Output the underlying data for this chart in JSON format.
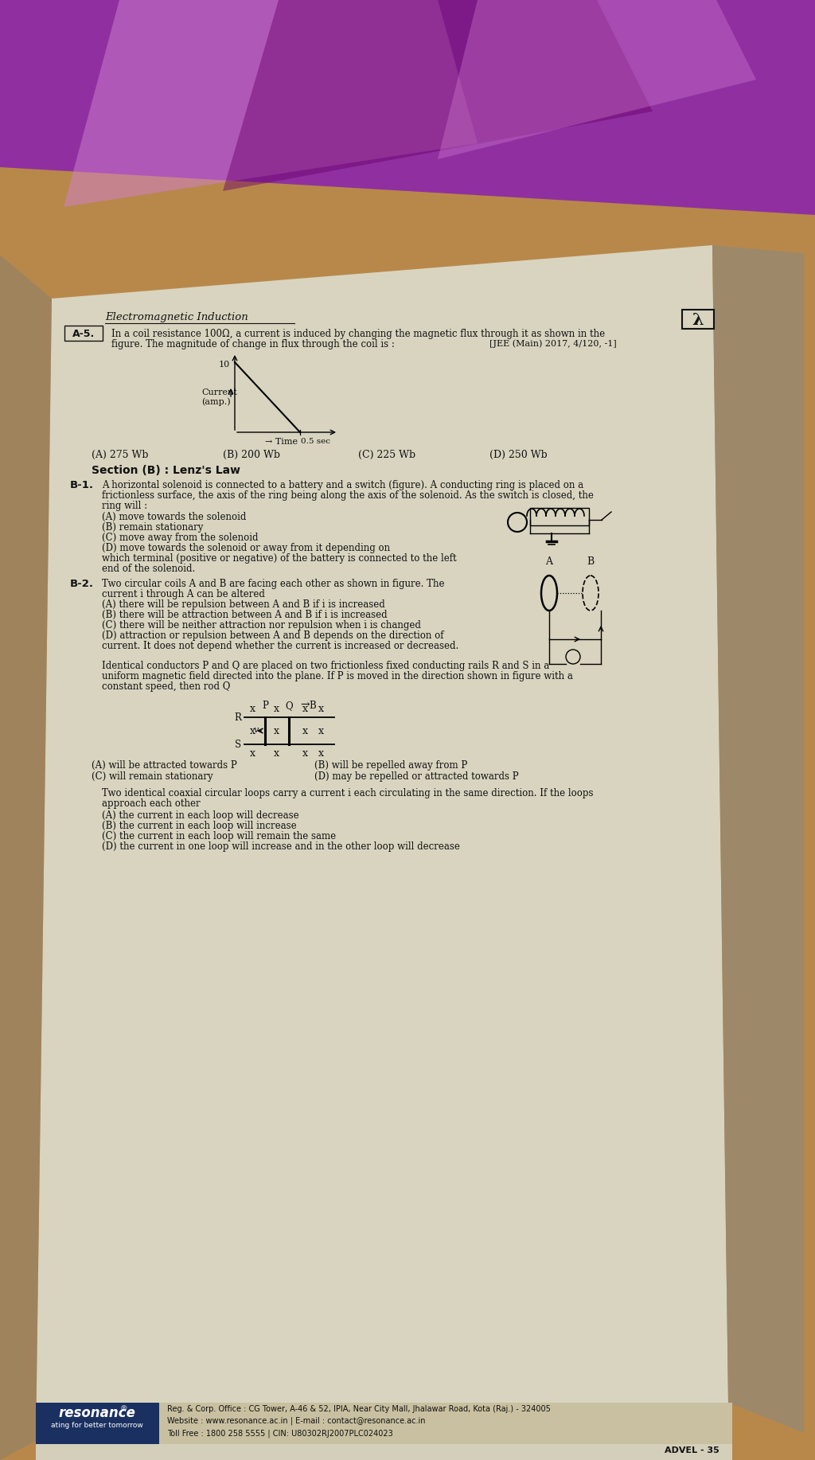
{
  "bg_top_color": "#c060a0",
  "bg_wood_color": "#b8884a",
  "page_bg": "#d8d4bf",
  "text_color": "#111111",
  "title": "Electromagnetic Induction",
  "section_a5_label": "A-5.",
  "options_a5": [
    "(A) 275 Wb",
    "(B) 200 Wb",
    "(C) 225 Wb",
    "(D) 250 Wb"
  ],
  "section_b_title": "Section (B) : Lenz's Law",
  "b1_options": [
    "(A) move towards the solenoid",
    "(B) remain stationary",
    "(C) move away from the solenoid",
    "(D) move towards the solenoid or away from it depending on",
    "which terminal (positive or negative) of the battery is connected to the left",
    "end of the solenoid."
  ],
  "b2_options": [
    "(A) there will be repulsion between A and B if i is increased",
    "(B) there will be attraction between A and B if i is increased",
    "(C) there will be neither attraction nor repulsion when i is changed",
    "(D) attraction or repulsion between A and B depends on the direction of",
    "current. It does not depend whether the current is increased or decreased."
  ],
  "b3_options_left": [
    "(A) will be attracted towards P",
    "(C) will remain stationary"
  ],
  "b3_options_right": [
    "(B) will be repelled away from P",
    "(D) may be repelled or attracted towards P"
  ],
  "b4_options": [
    "(A) the current in each loop will decrease",
    "(B) the current in each loop will increase",
    "(C) the current in each loop will remain the same",
    "(D) the current in one loop will increase and in the other loop will decrease"
  ],
  "footer_address": "Reg. & Corp. Office : CG Tower, A-46 & 52, IPIA, Near City Mall, Jhalawar Road, Kota (Raj.) - 324005",
  "footer_website": "Website : www.resonance.ac.in | E-mail : contact@resonance.ac.in",
  "footer_tollfree": "Toll Free : 1800 258 5555 | CIN: U80302RJ2007PLC024023",
  "footer_page": "ADVEL - 35"
}
